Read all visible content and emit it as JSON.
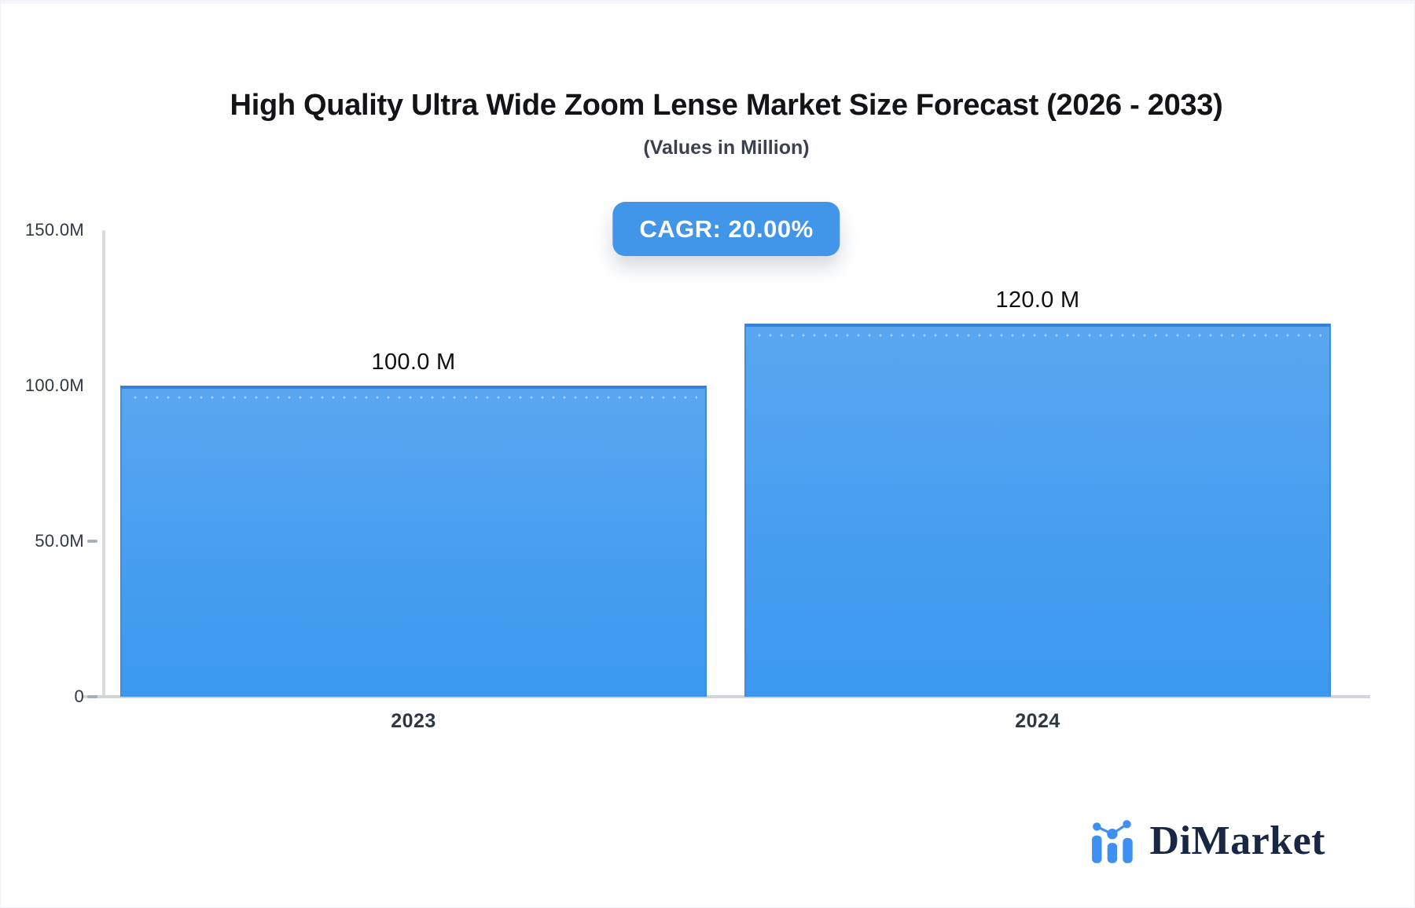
{
  "header": {
    "title": "High Quality Ultra Wide Zoom Lense Market Size Forecast (2026 - 2033)",
    "subtitle": "(Values in Million)",
    "cagr_label": "CAGR: 20.00%"
  },
  "chart_data": {
    "type": "bar",
    "title": "High Quality Ultra Wide Zoom Lense Market Size Forecast (2026 - 2033)",
    "subtitle": "(Values in Million)",
    "unit": "Million",
    "cagr_percent": 20.0,
    "categories": [
      "2023",
      "2024"
    ],
    "values": [
      100.0,
      120.0
    ],
    "value_labels": [
      "100.0 M",
      "120.0 M"
    ],
    "ylim": [
      0,
      150
    ],
    "yticks": [
      {
        "label": "0",
        "value": 0,
        "dash": true
      },
      {
        "label": "50.0M",
        "value": 50,
        "dash": true
      },
      {
        "label": "100.0M",
        "value": 100,
        "dash": false
      },
      {
        "label": "150.0M",
        "value": 150,
        "dash": false
      }
    ],
    "grid": false,
    "legend": false,
    "bar_color_top": "#59a6ef",
    "bar_color_bottom": "#3c98f0",
    "bar_border_color": "#3583d8",
    "axis_color": "#d6d9dd",
    "badge_color": "#4196e9"
  },
  "footer": {
    "logo_text": "DiMarket",
    "logo_icon": "mini-bar-chart-with-dots",
    "logo_blue": "#3e8ff2",
    "logo_navy": "#182743"
  }
}
